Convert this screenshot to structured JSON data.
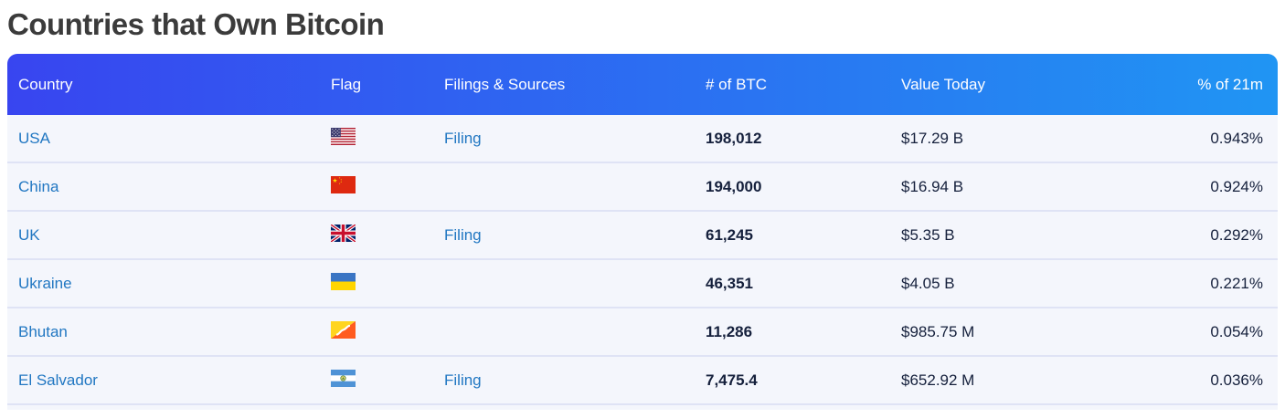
{
  "page": {
    "title": "Countries that Own Bitcoin"
  },
  "table": {
    "columns": [
      "Country",
      "Flag",
      "Filings & Sources",
      "# of BTC",
      "Value Today",
      "% of 21m"
    ],
    "rows": [
      {
        "country": "USA",
        "flag_icon": "usa-flag-icon",
        "filing": "Filing",
        "btc": "198,012",
        "value": "$17.29 B",
        "pct": "0.943%"
      },
      {
        "country": "China",
        "flag_icon": "china-flag-icon",
        "filing": "",
        "btc": "194,000",
        "value": "$16.94 B",
        "pct": "0.924%"
      },
      {
        "country": "UK",
        "flag_icon": "uk-flag-icon",
        "filing": "Filing",
        "btc": "61,245",
        "value": "$5.35 B",
        "pct": "0.292%"
      },
      {
        "country": "Ukraine",
        "flag_icon": "ukraine-flag-icon",
        "filing": "",
        "btc": "46,351",
        "value": "$4.05 B",
        "pct": "0.221%"
      },
      {
        "country": "Bhutan",
        "flag_icon": "bhutan-flag-icon",
        "filing": "",
        "btc": "11,286",
        "value": "$985.75 M",
        "pct": "0.054%"
      },
      {
        "country": "El Salvador",
        "flag_icon": "el-salvador-flag-icon",
        "filing": "Filing",
        "btc": "7,475.4",
        "value": "$652.92 M",
        "pct": "0.036%"
      }
    ]
  },
  "colors": {
    "header_gradient_start": "#3845f0",
    "header_gradient_end": "#2095f3",
    "link": "#2177c2",
    "value_text": "#15203c",
    "row_bg": "#f4f6fc",
    "row_border": "#dfe3f5",
    "title": "#3b3b3b"
  }
}
